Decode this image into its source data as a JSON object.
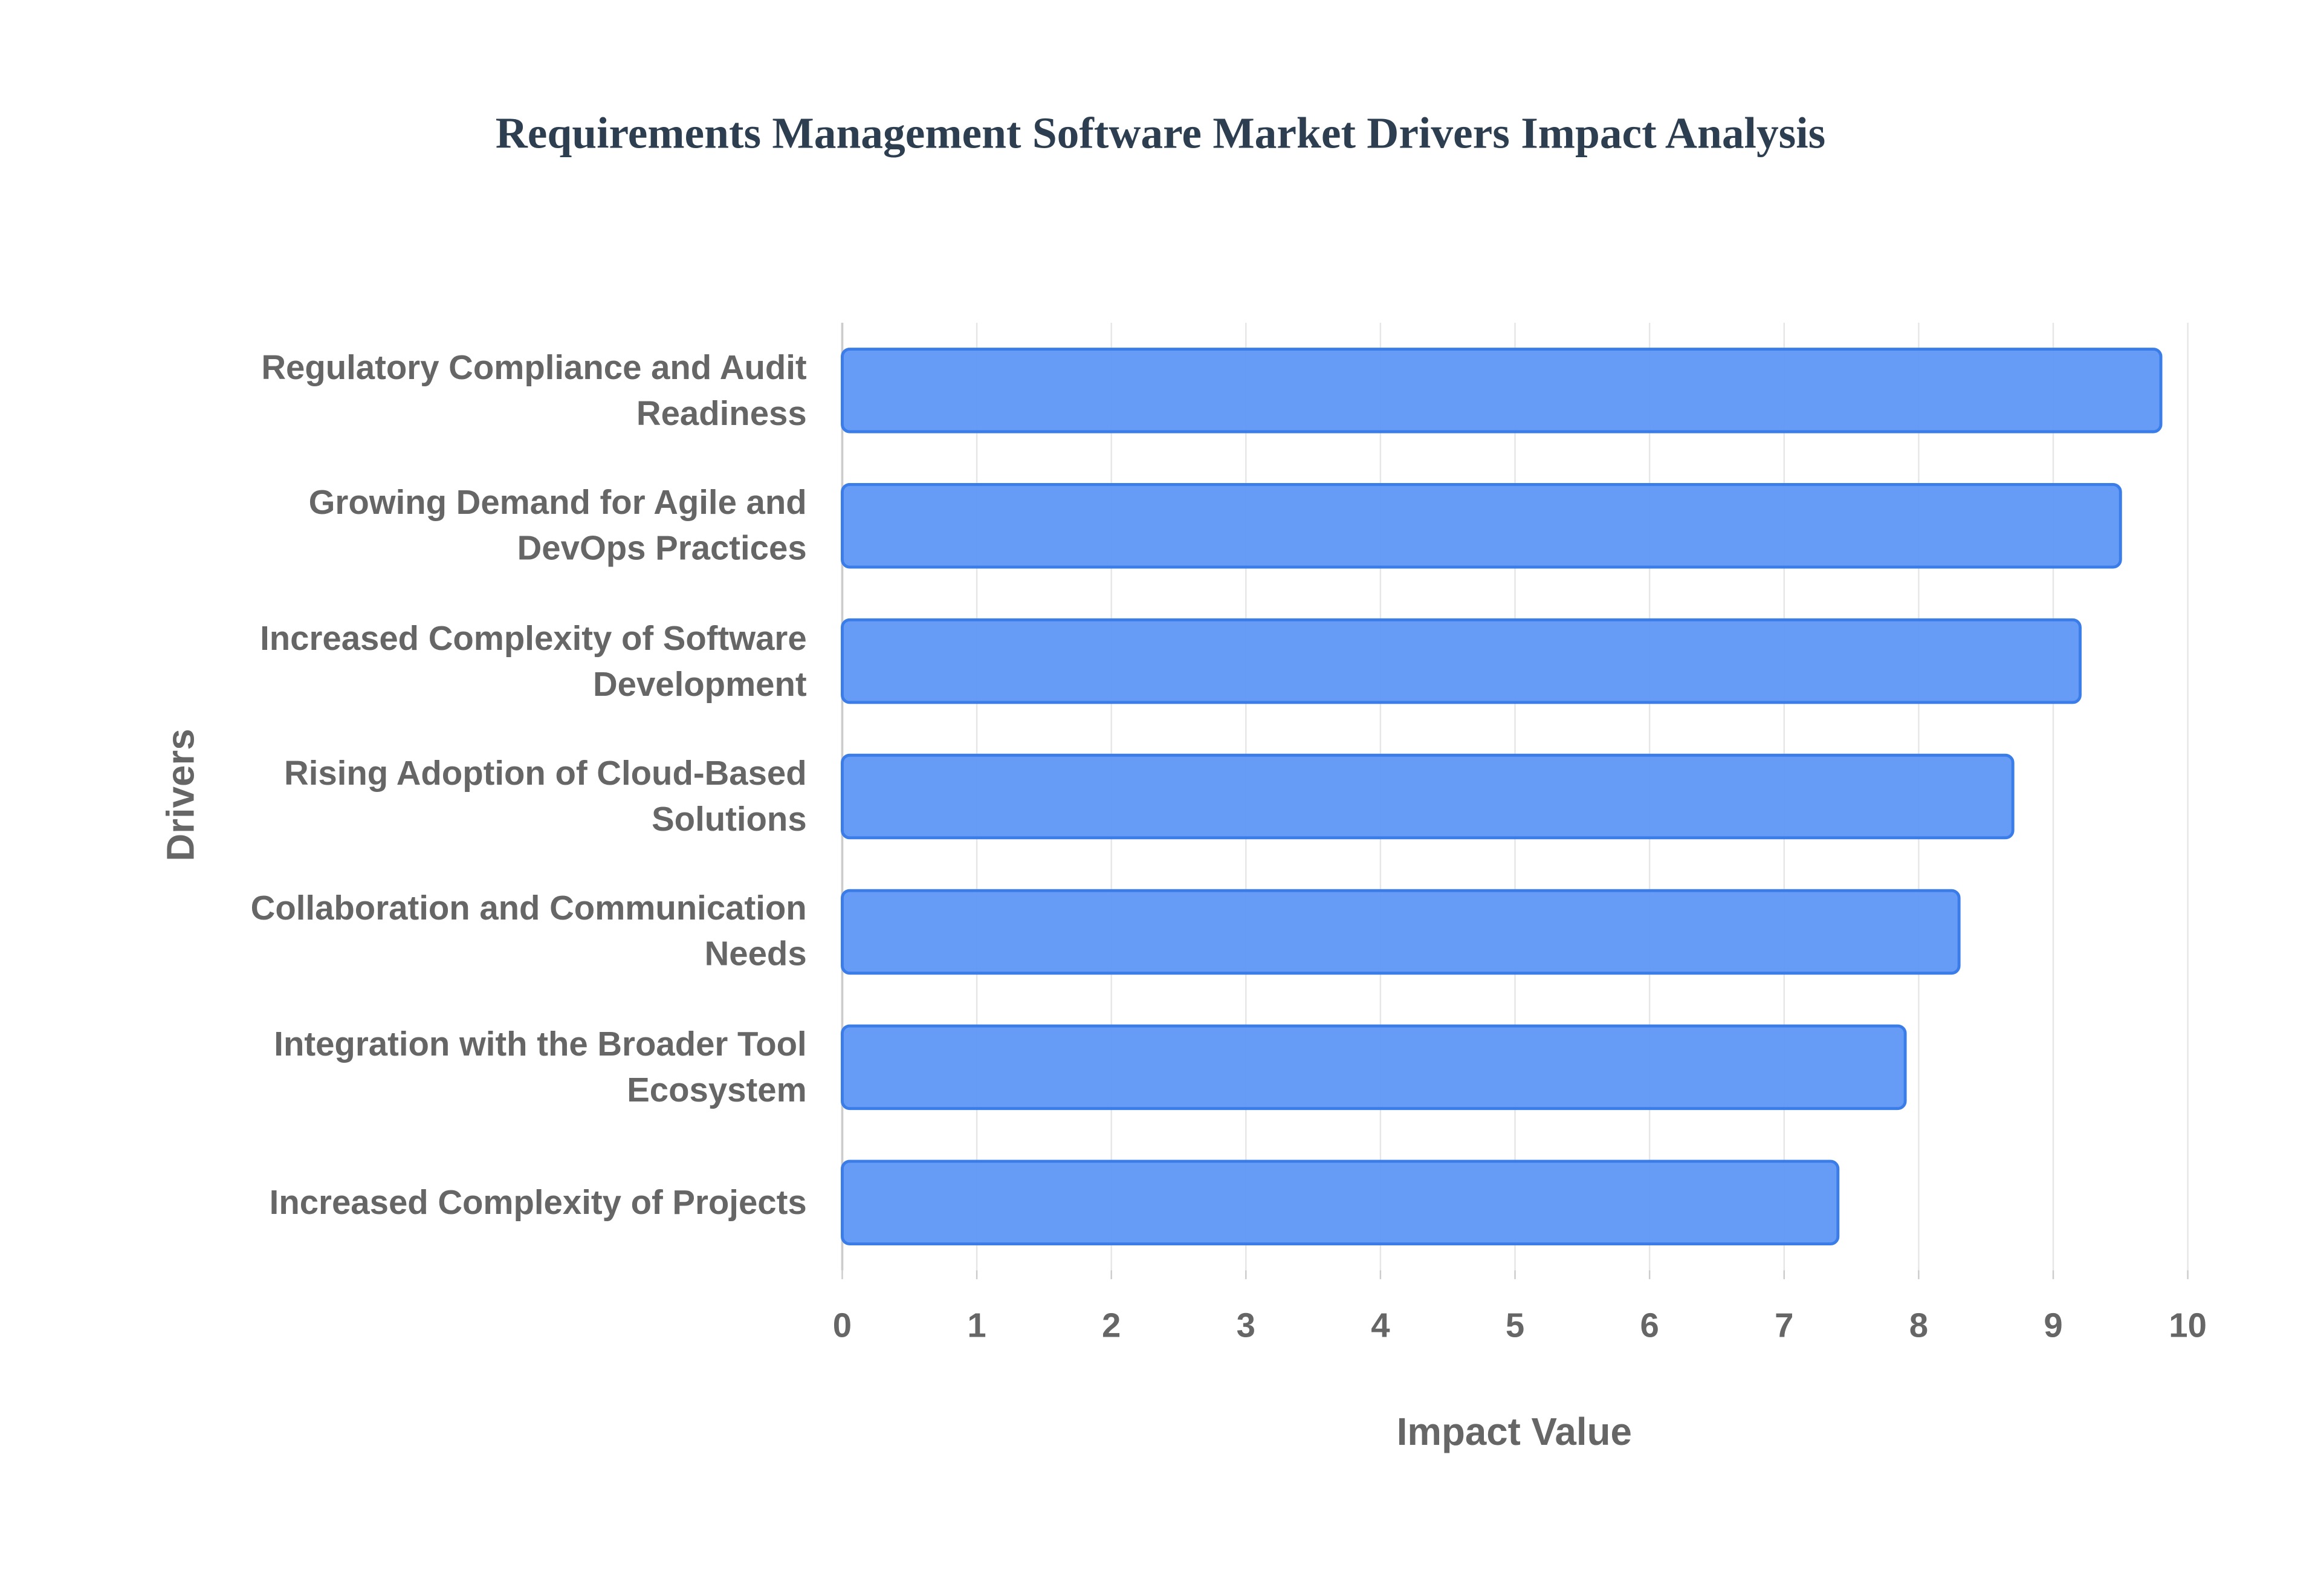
{
  "chart_data": {
    "type": "bar",
    "orientation": "horizontal",
    "title": "Requirements Management Software Market Drivers Impact Analysis",
    "x_label": "Impact Value",
    "y_label": "Drivers",
    "categories": [
      "Regulatory Compliance and Audit Readiness",
      "Growing Demand for Agile and DevOps Practices",
      "Increased Complexity of Software Development",
      "Rising Adoption of Cloud-Based Solutions",
      "Collaboration and Communication Needs",
      "Integration with the Broader Tool Ecosystem",
      "Increased Complexity of Projects"
    ],
    "values": [
      9.8,
      9.5,
      9.2,
      8.7,
      8.3,
      7.9,
      7.4
    ],
    "color": "#5e97f6",
    "edgecolor": "#3b7de8",
    "xlim": [
      0,
      10
    ],
    "xticks": [
      0,
      1,
      2,
      3,
      4,
      5,
      6,
      7,
      8,
      9,
      10
    ],
    "grid": true
  }
}
